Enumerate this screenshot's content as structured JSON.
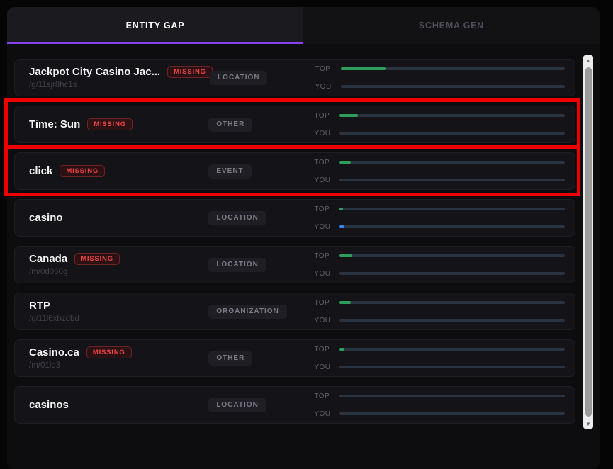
{
  "tabs": [
    {
      "label": "ENTITY GAP",
      "active": true
    },
    {
      "label": "SCHEMA GEN",
      "active": false
    }
  ],
  "bar_labels": {
    "top": "TOP",
    "you": "YOU"
  },
  "badge_label": "MISSING",
  "scrollbar": {
    "up_arrow": "▲",
    "down_arrow": "▼"
  },
  "colors": {
    "accent_purple": "#8344ee",
    "bar_green": "#2f9e5b",
    "bar_blue": "#3b82f6",
    "bar_track": "#2a3340",
    "annotation_red": "#ee0000",
    "missing_red": "#ef4444"
  },
  "entities": [
    {
      "name": "Jackpot City Casino Jac...",
      "missing": true,
      "id": "/g/11sjr8hc1s",
      "tag": "LOCATION",
      "top_pct": 20,
      "you_pct": 0,
      "you_color": "blue",
      "highlighted": false
    },
    {
      "name": "Time: Sun",
      "missing": true,
      "id": "",
      "tag": "OTHER",
      "top_pct": 8,
      "you_pct": 0,
      "you_color": "blue",
      "highlighted": true
    },
    {
      "name": "click",
      "missing": true,
      "id": "",
      "tag": "EVENT",
      "top_pct": 5,
      "you_pct": 0,
      "you_color": "blue",
      "highlighted": true
    },
    {
      "name": "casino",
      "missing": false,
      "id": "",
      "tag": "LOCATION",
      "top_pct": 1.5,
      "you_pct": 2,
      "you_color": "blue",
      "highlighted": false
    },
    {
      "name": "Canada",
      "missing": true,
      "id": "/m/0d060g",
      "tag": "LOCATION",
      "top_pct": 5.5,
      "you_pct": 0,
      "you_color": "blue",
      "highlighted": false
    },
    {
      "name": "RTP",
      "missing": false,
      "id": "/g/11l6xbzdbd",
      "tag": "ORGANIZATION",
      "top_pct": 5,
      "you_pct": 0,
      "you_color": "blue",
      "highlighted": false
    },
    {
      "name": "Casino.ca",
      "missing": true,
      "id": "/m/01lq3",
      "tag": "OTHER",
      "top_pct": 2,
      "you_pct": 0,
      "you_color": "blue",
      "highlighted": false
    },
    {
      "name": "casinos",
      "missing": false,
      "id": "",
      "tag": "LOCATION",
      "top_pct": 0,
      "you_pct": 0,
      "you_color": "blue",
      "highlighted": false
    }
  ]
}
